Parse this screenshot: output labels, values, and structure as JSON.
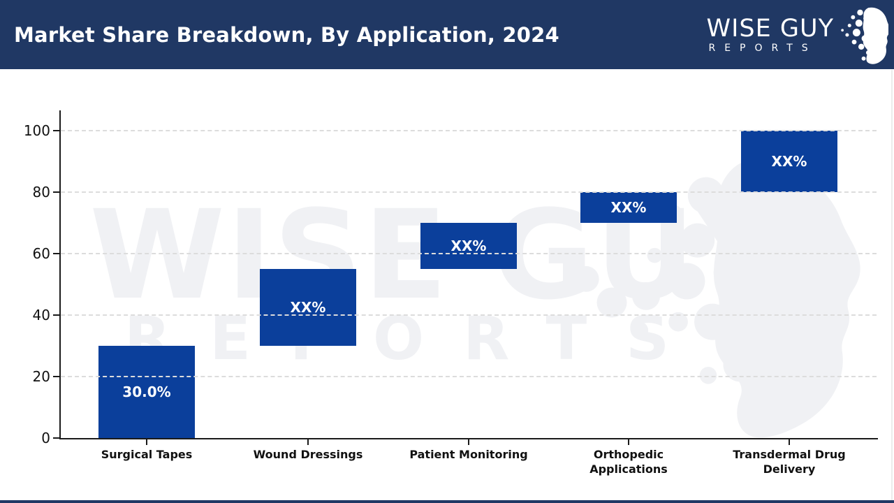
{
  "header": {
    "title": "Market Share Breakdown, By Application, 2024",
    "logo": {
      "line1": "WISE GUY",
      "line2": "REPORTS"
    }
  },
  "watermark": {
    "line1": "WISE GUY",
    "line2": "REPORTS"
  },
  "colors": {
    "header_bg": "#203864",
    "bar": "#0b3f9b",
    "grid": "#dcdcdc",
    "axis": "#1a1a1a",
    "bar_label_text": "#ffffff",
    "tick_text": "#111111",
    "watermark": "#f0f1f4"
  },
  "chart_data": {
    "type": "bar",
    "subtype": "waterfall",
    "title": "Market Share Breakdown, By Application, 2024",
    "xlabel": "",
    "ylabel": "",
    "ylim": [
      0,
      100
    ],
    "yticks": [
      0,
      20,
      40,
      60,
      80,
      100
    ],
    "grid": "horizontal-dashed",
    "legend": "none",
    "categories": [
      "Surgical Tapes",
      "Wound Dressings",
      "Patient Monitoring",
      "Orthopedic Applications",
      "Transdermal Drug Delivery"
    ],
    "bars": [
      {
        "name": "Surgical Tapes",
        "tick_label": "Surgical Tapes",
        "start": 0,
        "end": 30,
        "value": 30,
        "label": "30.0%"
      },
      {
        "name": "Wound Dressings",
        "tick_label": "Wound Dressings",
        "start": 30,
        "end": 55,
        "value": 25,
        "label": "XX%"
      },
      {
        "name": "Patient Monitoring",
        "tick_label": "Patient Monitoring",
        "start": 55,
        "end": 70,
        "value": 15,
        "label": "XX%"
      },
      {
        "name": "Orthopedic Applications",
        "tick_label": "Orthopedic\nApplications",
        "start": 70,
        "end": 80,
        "value": 10,
        "label": "XX%"
      },
      {
        "name": "Transdermal Drug Delivery",
        "tick_label": "Transdermal Drug\nDelivery",
        "start": 80,
        "end": 100,
        "value": 20,
        "label": "XX%"
      }
    ]
  }
}
